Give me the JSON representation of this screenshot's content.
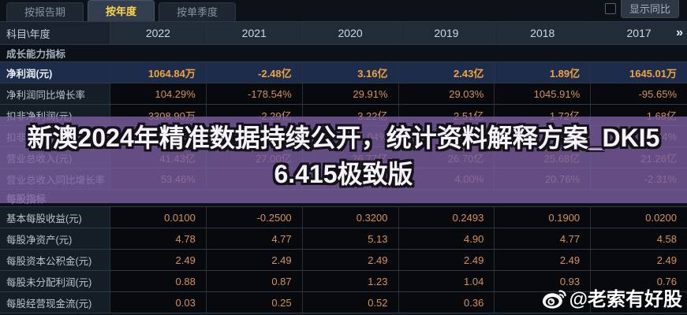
{
  "tabs": [
    {
      "label": "按报告期",
      "active": false
    },
    {
      "label": "按年度",
      "active": true
    },
    {
      "label": "按单季度",
      "active": false
    }
  ],
  "toolbar": {
    "compare_label": "显示同比",
    "checkbox_checked": false
  },
  "table": {
    "corner_label": "科目\\年度",
    "years": [
      "2022",
      "2021",
      "2020",
      "2019",
      "2018",
      "2017"
    ],
    "more_arrow": "»",
    "rows": [
      {
        "type": "section",
        "label": "成长能力指标"
      },
      {
        "type": "data",
        "label": "净利润(元)",
        "highlight": true,
        "values": [
          "1064.84万",
          "-2.48亿",
          "3.16亿",
          "2.43亿",
          "1.89亿",
          "1645.01万"
        ]
      },
      {
        "type": "data",
        "label": "净利润同比增长率",
        "values": [
          "104.29%",
          "-178.54%",
          "29.91%",
          "29.03%",
          "1045.91%",
          "-95.65%"
        ]
      },
      {
        "type": "data",
        "label": "扣非净利润(元)",
        "values": [
          "3308.90万",
          "-2.29亿",
          "3.22亿",
          "2.51亿",
          "1.72亿",
          "1.68亿"
        ]
      },
      {
        "type": "data",
        "label": "扣非净利润同比增长率",
        "values": [
          "",
          "",
          "28.04%",
          "",
          "",
          "-56.34%"
        ]
      },
      {
        "type": "data",
        "label": "营业总收入(元)",
        "values": [
          "41.43亿",
          "27.00亿",
          "26.77亿",
          "26.70亿",
          "25.68亿",
          "21.26亿"
        ]
      },
      {
        "type": "data",
        "label": "营业总收入同比增长率",
        "values": [
          "53.46%",
          "",
          "",
          "4.00%",
          "20.76%",
          "-2.31%"
        ]
      },
      {
        "type": "section",
        "label": "每股指标"
      },
      {
        "type": "data",
        "label": "基本每股收益(元)",
        "values": [
          "0.0100",
          "-0.2500",
          "0.3200",
          "0.2493",
          "0.1900",
          "0.0200"
        ]
      },
      {
        "type": "data",
        "label": "每股净资产(元)",
        "values": [
          "4.78",
          "4.77",
          "5.13",
          "4.90",
          "4.77",
          "4.58"
        ]
      },
      {
        "type": "data",
        "label": "每股资本公积金(元)",
        "values": [
          "2.49",
          "2.49",
          "2.49",
          "2.49",
          "2.49",
          "2.49"
        ]
      },
      {
        "type": "data",
        "label": "每股未分配利润(元)",
        "values": [
          "0.88",
          "0.87",
          "1.23",
          "1.04",
          "0.93",
          "0.76"
        ]
      },
      {
        "type": "data",
        "label": "每股经营现金流(元)",
        "values": [
          "0.03",
          "0.25",
          "0.52",
          "0.36",
          "",
          ""
        ]
      }
    ]
  },
  "overlay": {
    "line1": "新澳2024年精准数据持续公开，统计资料解释方案_DKI5",
    "line2": "6.415极致版"
  },
  "watermark": {
    "text": "@老索有好股"
  },
  "colors": {
    "active_tab_text": "#ffd34d",
    "value_orange": "#d6925a",
    "highlight_value": "#f2a33c",
    "overlay_band": "#7a5fa0",
    "overlay_text": "#f5f2f8"
  }
}
